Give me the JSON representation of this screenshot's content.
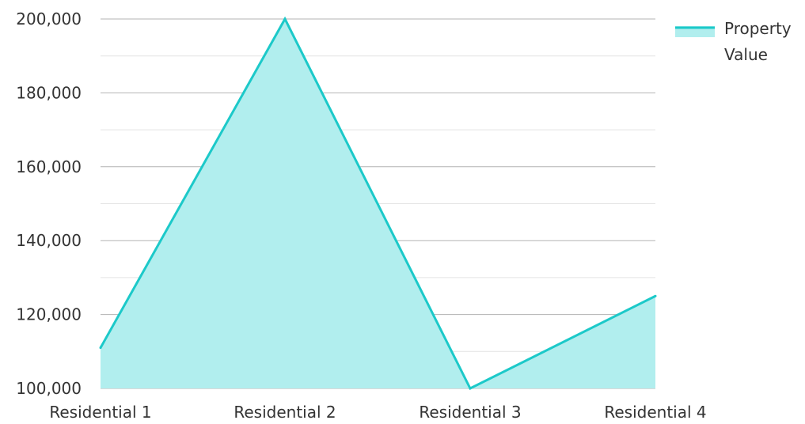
{
  "chart_data": {
    "type": "area",
    "categories": [
      "Residential 1",
      "Residential 2",
      "Residential 3",
      "Residential 4"
    ],
    "series": [
      {
        "name": "Property Value",
        "values": [
          111000,
          200000,
          100000,
          125000
        ]
      }
    ],
    "ylim": [
      100000,
      200000
    ],
    "yticks": [
      100000,
      120000,
      140000,
      160000,
      180000,
      200000
    ],
    "ytick_labels": [
      "100,000",
      "120,000",
      "140,000",
      "160,000",
      "180,000",
      "200,000"
    ],
    "grid": true,
    "legend_position": "top-right",
    "legend_label_lines": [
      "Property",
      "Value"
    ],
    "colors": {
      "line": "#1cc9c9",
      "fill": "#b1eeee",
      "grid_major": "#b3b3b3",
      "grid_minor": "#e3e3e3",
      "text": "#333333"
    }
  }
}
